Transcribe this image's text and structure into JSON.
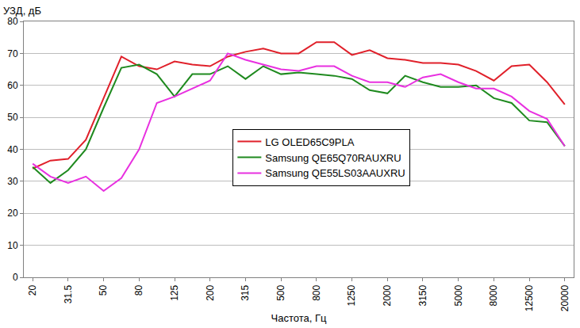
{
  "chart_data": {
    "type": "line",
    "x_label": "Частота, Гц",
    "y_label": "УЗД, дБ",
    "categories": [
      "20",
      null,
      "31.5",
      null,
      "50",
      null,
      "80",
      null,
      "125",
      null,
      "200",
      null,
      "315",
      null,
      "500",
      null,
      "800",
      null,
      "1250",
      null,
      "2000",
      null,
      "3150",
      null,
      "5000",
      null,
      "8000",
      null,
      "12500",
      null,
      "20000"
    ],
    "series": [
      {
        "name": "LG OLED65C9PLA",
        "color": "#e0202a",
        "values": [
          34,
          36.5,
          37,
          43,
          56,
          69,
          66,
          65,
          67.5,
          66.5,
          66,
          69,
          70.5,
          71.5,
          70,
          70,
          73.5,
          73.5,
          69.5,
          71,
          68.5,
          68,
          67,
          67,
          66.5,
          64.5,
          61.5,
          66,
          66.5,
          61,
          54
        ]
      },
      {
        "name": "Samsung QE65Q70RAUXRU",
        "color": "#1f8a1f",
        "values": [
          34.5,
          29.5,
          33.5,
          40,
          53,
          65.5,
          66.5,
          63.5,
          56.5,
          63.5,
          63.5,
          66,
          62,
          66,
          63.5,
          64,
          63.5,
          63,
          62,
          58.5,
          57.5,
          63,
          61,
          59.5,
          59.5,
          60,
          56,
          54.5,
          49,
          48.5,
          41
        ]
      },
      {
        "name": "Samsung QE55LS03AAUXRU",
        "color": "#e830e0",
        "values": [
          35.5,
          31.5,
          29.5,
          31.5,
          27,
          31,
          40,
          54.5,
          56.5,
          59,
          61.5,
          70,
          68,
          66.5,
          65,
          64.5,
          66,
          66,
          63,
          61,
          61,
          59.5,
          62.5,
          63.5,
          61,
          59,
          59,
          56.5,
          52,
          49.5,
          41
        ]
      }
    ],
    "ylim": [
      0,
      80
    ],
    "yticks": [
      0,
      10,
      20,
      30,
      40,
      50,
      60,
      70,
      80
    ],
    "grid": true,
    "legend": "center"
  }
}
